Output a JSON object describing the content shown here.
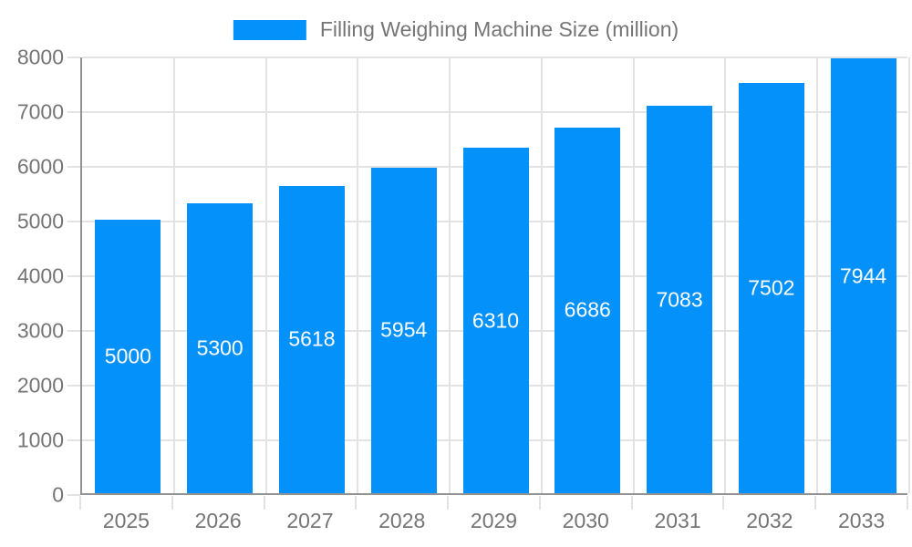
{
  "chart_data": {
    "type": "bar",
    "title": "Filling Weighing Machine Size (million)",
    "legend": [
      "Filling Weighing Machine Size (million)"
    ],
    "legend_position": "top",
    "categories": [
      "2025",
      "2026",
      "2027",
      "2028",
      "2029",
      "2030",
      "2031",
      "2032",
      "2033"
    ],
    "values": [
      5000,
      5300,
      5618,
      5954,
      6310,
      6686,
      7083,
      7502,
      7944
    ],
    "xlabel": "",
    "ylabel": "",
    "ylim": [
      0,
      8000
    ],
    "y_tick_step": 1000,
    "y_ticks": [
      0,
      1000,
      2000,
      3000,
      4000,
      5000,
      6000,
      7000,
      8000
    ],
    "grid": true,
    "bar_labels_inside": true,
    "colors": {
      "bar": "#0591FA",
      "bar_label": "#ffffff",
      "axis_text": "#757575",
      "axis_line": "#929292",
      "gridline": "#e3e3e3",
      "background": "#ffffff"
    }
  }
}
